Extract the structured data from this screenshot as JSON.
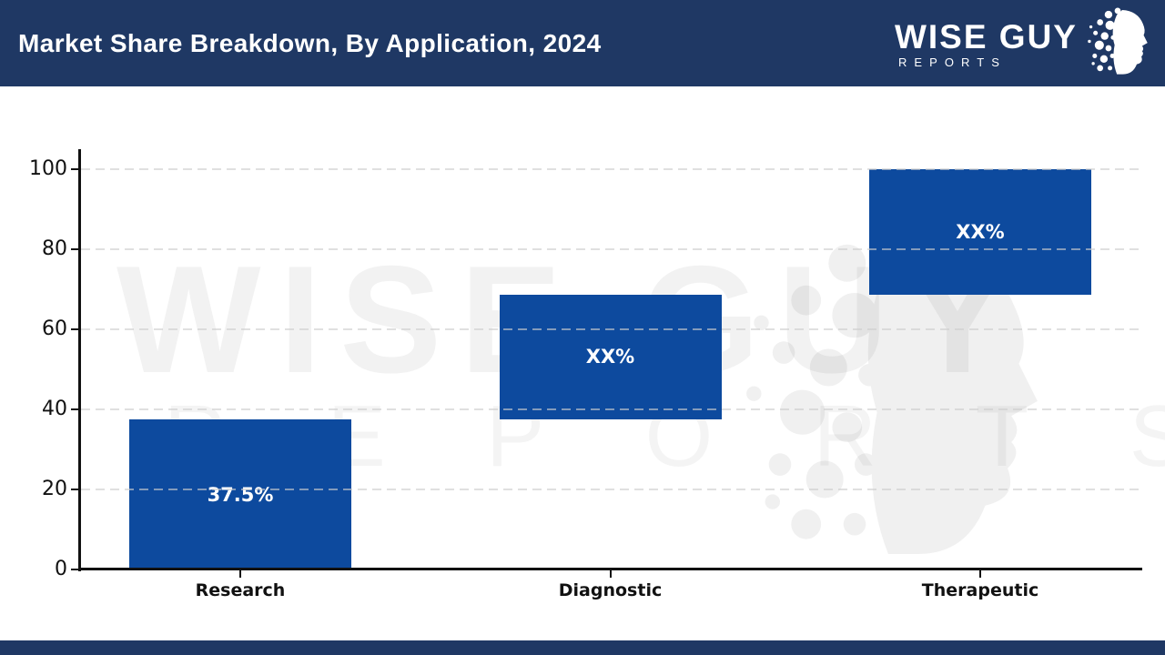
{
  "header": {
    "title": "Market Share Breakdown, By Application, 2024",
    "bg_color": "#1f3864",
    "logo": {
      "line1": "WISE GUY",
      "line2": "REPORTS"
    }
  },
  "watermark": {
    "line1": "WISE GUY",
    "line2": "REPORTS"
  },
  "chart_data": {
    "type": "bar",
    "variant": "floating-segment-waterfall",
    "title": "Market Share Breakdown, By Application, 2024",
    "categories": [
      "Research",
      "Diagnostic",
      "Therapeutic"
    ],
    "bars": [
      {
        "category": "Research",
        "start": 0,
        "end": 37.5,
        "label": "37.5%"
      },
      {
        "category": "Diagnostic",
        "start": 37.5,
        "end": 68.75,
        "label": "XX%"
      },
      {
        "category": "Therapeutic",
        "start": 68.75,
        "end": 100,
        "label": "XX%"
      }
    ],
    "ylim": [
      0,
      100
    ],
    "yticks": [
      0,
      20,
      40,
      60,
      80,
      100
    ],
    "grid": "horizontal-dashed",
    "legend": "none",
    "bar_color": "#0d4a9e",
    "bar_label_color": "#ffffff",
    "axis_color": "#111111"
  },
  "footer": {
    "bg_color": "#1f3864"
  }
}
